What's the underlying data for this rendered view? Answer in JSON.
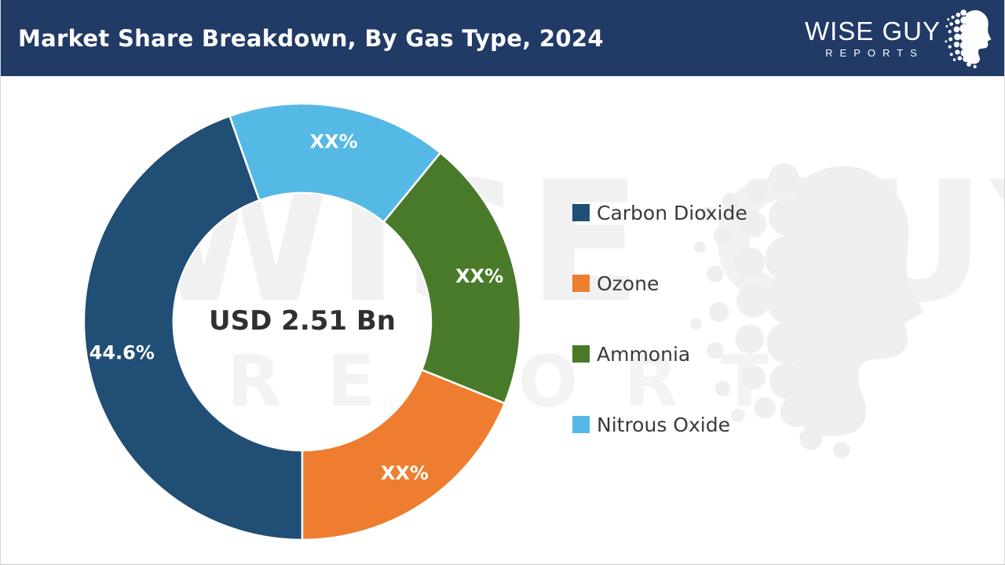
{
  "header": {
    "title": "Market Share Breakdown, By Gas Type, 2024",
    "bg_color": "#213a66",
    "logo": {
      "word": "WISE GUY",
      "sub": "REPORTS"
    }
  },
  "watermark": {
    "line1": "WISE GUY",
    "line2": "REPORTS"
  },
  "chart_data": {
    "type": "pie",
    "subtype": "donut",
    "title": "Market Share Breakdown, By Gas Type, 2024",
    "center_label": "USD 2.51 Bn",
    "start_angle_deg": 180,
    "direction": "clockwise",
    "slices": [
      {
        "label": "Carbon Dioxide",
        "value_pct": 44.6,
        "display_label": "44.6%",
        "color": "#204e75"
      },
      {
        "label": "Nitrous Oxide",
        "value_pct": 16.3,
        "display_label": "XX%",
        "color": "#55b9e5"
      },
      {
        "label": "Ammonia",
        "value_pct": 20.2,
        "display_label": "XX%",
        "color": "#497a29"
      },
      {
        "label": "Ozone",
        "value_pct": 18.9,
        "display_label": "XX%",
        "color": "#ee7d2f"
      }
    ],
    "legend_order": [
      "Carbon Dioxide",
      "Ozone",
      "Ammonia",
      "Nitrous Oxide"
    ],
    "legend_position": "right",
    "label_text_color": "#ffffff",
    "center_text_color": "#303030"
  }
}
